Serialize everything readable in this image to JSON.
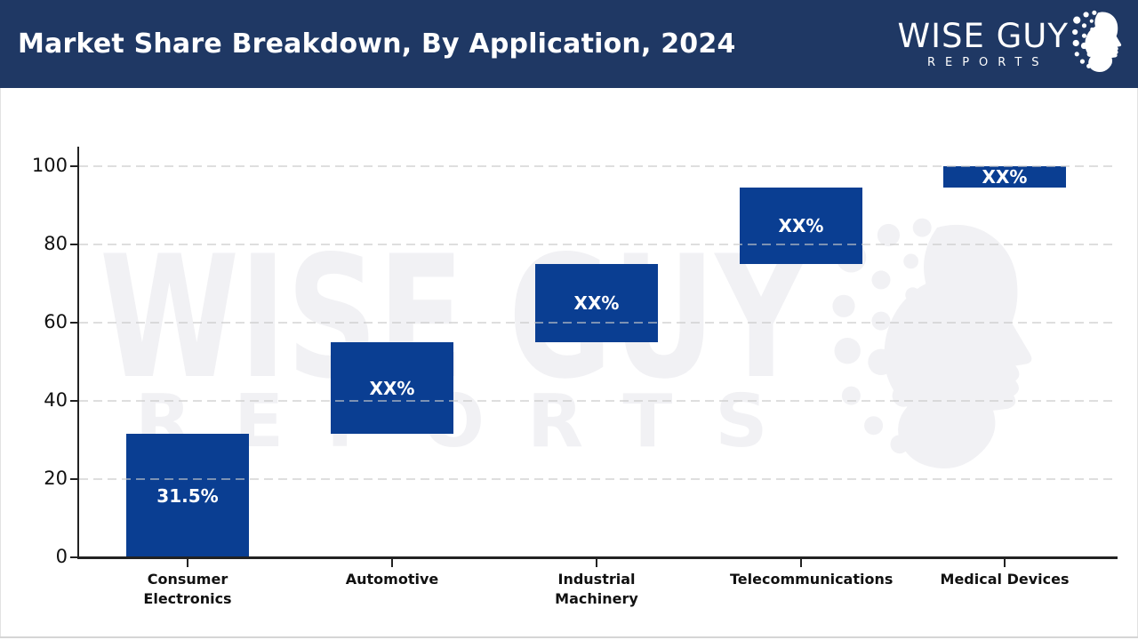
{
  "header": {
    "title": "Market Share Breakdown, By Application, 2024",
    "bg_color": "#1f3864",
    "logo": {
      "line1": "WISE GUY",
      "line2": "REPORTS"
    }
  },
  "watermark": {
    "line1": "WISE GUY",
    "line2": "REPORTS"
  },
  "chart_data": {
    "type": "bar",
    "subtype": "waterfall",
    "title": "Market Share Breakdown, By Application, 2024",
    "categories": [
      "Consumer Electronics",
      "Automotive",
      "Industrial Machinery",
      "Telecommunications",
      "Medical Devices"
    ],
    "values": [
      31.5,
      23.5,
      20.0,
      19.5,
      5.5
    ],
    "segments": [
      {
        "category": "Consumer Electronics",
        "start": 0,
        "end": 31.5,
        "label": "31.5%"
      },
      {
        "category": "Automotive",
        "start": 31.5,
        "end": 55.0,
        "label": "XX%"
      },
      {
        "category": "Industrial Machinery",
        "start": 55.0,
        "end": 75.0,
        "label": "XX%"
      },
      {
        "category": "Telecommunications",
        "start": 75.0,
        "end": 94.5,
        "label": "XX%"
      },
      {
        "category": "Medical Devices",
        "start": 94.5,
        "end": 100.0,
        "label": "XX%"
      }
    ],
    "y_ticks": [
      0,
      20,
      40,
      60,
      80,
      100
    ],
    "ylim": [
      0,
      100
    ],
    "xlabel": "",
    "ylabel": "",
    "bar_color": "#0a3e92",
    "grid": "horizontal-dashed",
    "legend": "none"
  }
}
